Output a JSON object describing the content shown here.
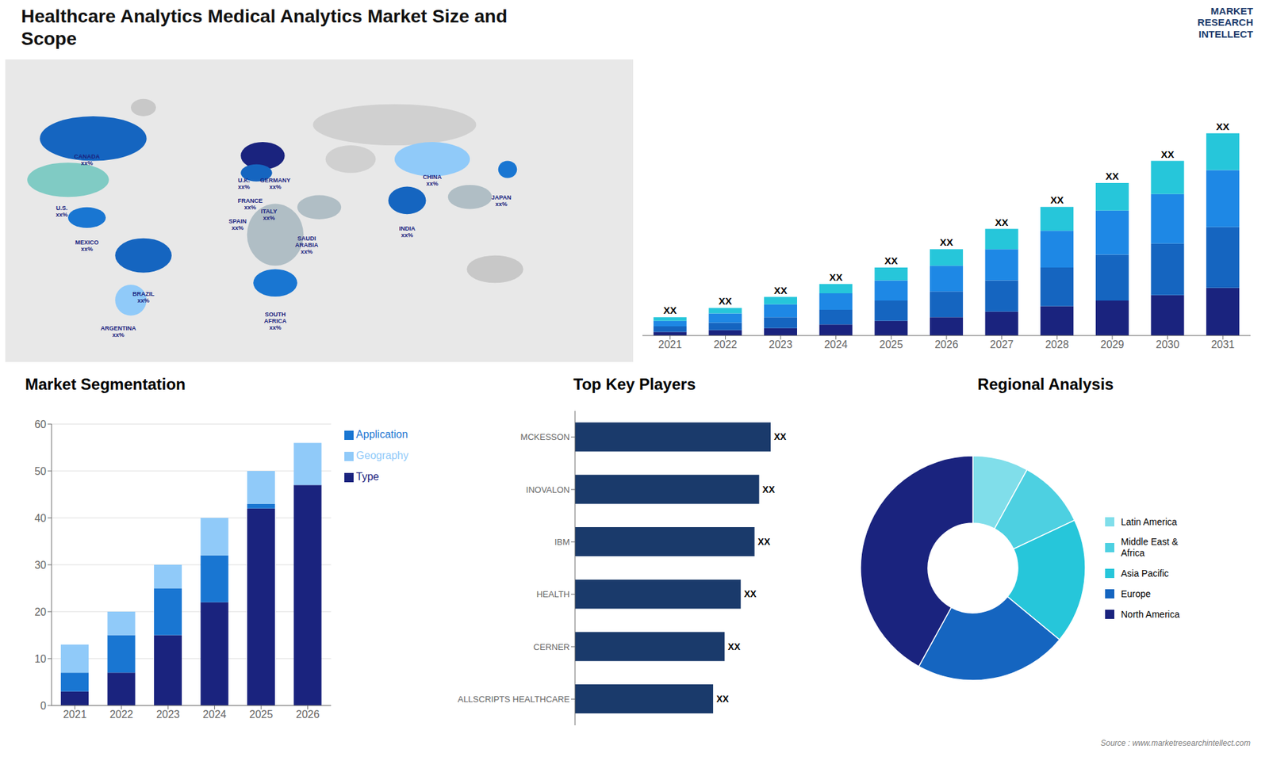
{
  "chart_data": [
    {
      "type": "map",
      "title": "Healthcare Analytics Medical Analytics Market Size and\nScope",
      "annotations": [
        "CANADA\nxx%",
        "U.S.\nxx%",
        "MEXICO\nxx%",
        "BRAZIL\nxx%",
        "ARGENTINA\nxx%",
        "U.K.\nxx%",
        "FRANCE\nxx%",
        "SPAIN\nxx%",
        "GERMANY\nxx%",
        "ITALY\nxx%",
        "SAUDI\nARABIA\nxx%",
        "SOUTH\nAFRICA\nxx%",
        "CHINA\nxx%",
        "INDIA\nxx%",
        "JAPAN\nxx%"
      ]
    },
    {
      "type": "bar",
      "subtitle": "MARKET\nRESEARCH\nINTELLECT",
      "stacked": true,
      "categories": [
        "2021",
        "2022",
        "2023",
        "2024",
        "2025",
        "2026",
        "2027",
        "2028",
        "2029",
        "2030",
        "2031"
      ],
      "series": [
        {
          "color": "#1a237e",
          "values": [
            2,
            3,
            4,
            6,
            8,
            10,
            13,
            16,
            19,
            22,
            26
          ]
        },
        {
          "color": "#1565c0",
          "values": [
            3,
            4,
            6,
            8,
            11,
            14,
            17,
            21,
            25,
            28,
            33
          ]
        },
        {
          "color": "#1e88e5",
          "values": [
            3,
            5,
            7,
            9,
            11,
            14,
            17,
            20,
            24,
            27,
            31
          ]
        },
        {
          "color": "#26c6da",
          "values": [
            2,
            3,
            4,
            5,
            7,
            9,
            11,
            13,
            15,
            18,
            20
          ]
        }
      ],
      "ylim": [
        0,
        143
      ],
      "tick_labels": "x",
      "annotations": [
        "XX",
        "XX",
        "XX",
        "XX",
        "XX",
        "XX",
        "XX",
        "XX",
        "XX",
        "XX",
        "XX"
      ]
    },
    {
      "type": "bar",
      "title": "Market Segmentation",
      "stacked": true,
      "categories": [
        "2021",
        "2022",
        "2023",
        "2024",
        "2025",
        "2026"
      ],
      "series": [
        {
          "name": "Type",
          "color": "#1a237e",
          "values": [
            3,
            7,
            15,
            22,
            42,
            47
          ]
        },
        {
          "name": "Application",
          "color": "#1976d2",
          "values": [
            4,
            8,
            10,
            10,
            1,
            0
          ]
        },
        {
          "name": "Geography",
          "color": "#90caf9",
          "values": [
            6,
            5,
            5,
            8,
            7,
            9
          ]
        }
      ],
      "ylim": [
        0,
        60
      ],
      "yticks": [
        0,
        10,
        20,
        30,
        40,
        50,
        60
      ],
      "grid": true,
      "legend": "right"
    },
    {
      "type": "bar",
      "orientation": "horizontal",
      "title": "Top Key Players",
      "categories": [
        "MCKESSON",
        "INOVALON",
        "IBM",
        "HEALTH",
        "CERNER",
        "ALLSCRIPTS HEALTHCARE"
      ],
      "values": [
        85,
        80,
        78,
        72,
        65,
        60
      ],
      "value_labels": [
        "XX",
        "XX",
        "XX",
        "XX",
        "XX",
        "XX"
      ],
      "color": "#1a3a6b",
      "xlim": [
        0,
        106.25
      ],
      "tick_labels": "y"
    },
    {
      "type": "pie",
      "title": "Regional Analysis",
      "categories": [
        "Latin America",
        "Middle East &\nAfrica",
        "Asia Pacific",
        "Europe",
        "North America"
      ],
      "values": [
        8,
        10,
        18,
        22,
        42
      ],
      "colors": [
        "#80deea",
        "#4dd0e1",
        "#26c6da",
        "#1565c0",
        "#1a237e"
      ],
      "legend": "right",
      "annotations": [
        "Source : www.marketresearchintellect.com"
      ]
    }
  ]
}
